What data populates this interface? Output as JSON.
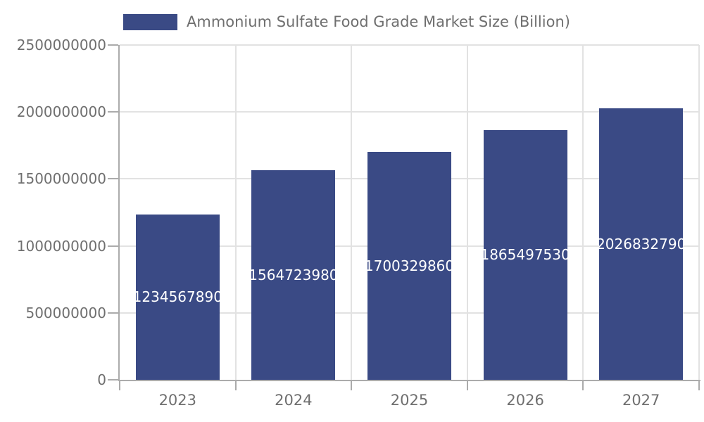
{
  "legend": {
    "label": "Ammonium Sulfate Food Grade Market Size (Billion)"
  },
  "chart_data": {
    "type": "bar",
    "title": "Ammonium Sulfate Food Grade Market Size (Billion)",
    "categories": [
      "2023",
      "2024",
      "2025",
      "2026",
      "2027"
    ],
    "values": [
      1234567890,
      1564723980,
      1700329860,
      1865497530,
      2026832790
    ],
    "bar_value_labels": [
      "1234567890",
      "1564723980",
      "1700329860",
      "1865497530",
      "2026832790"
    ],
    "xlabel": "",
    "ylabel": "",
    "ylim": [
      0,
      2500000000
    ],
    "ytick_interval": 500000000,
    "ytick_labels": [
      "0",
      "500000000",
      "1000000000",
      "1500000000",
      "2000000000",
      "2500000000"
    ],
    "grid": true,
    "legend_position": "top-left",
    "colors": {
      "bar": "#3A4A85",
      "grid": "#E2E2E2",
      "axis": "#ABABAB",
      "text": "#6F6F6F",
      "bar_label": "#FFFFFF",
      "background": "#FFFFFF"
    }
  }
}
